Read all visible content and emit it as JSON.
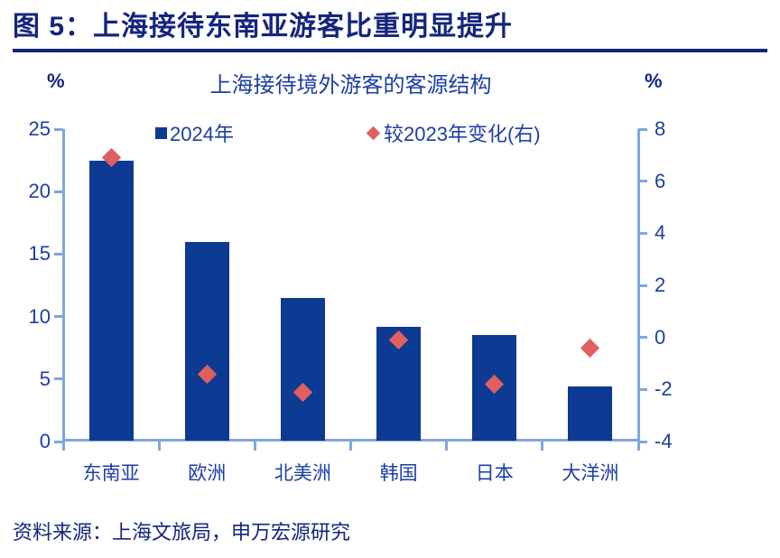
{
  "figure": {
    "title": "图 5：上海接待东南亚游客比重明显提升",
    "source": "资料来源：上海文旅局，申万宏源研究"
  },
  "colors": {
    "navy": "#14257E",
    "blue_text": "#1D3EA5",
    "bar_blue": "#0D3A93",
    "diamond_red": "#E06060",
    "axis_blue": "#7FA7DB"
  },
  "chart_data": {
    "type": "bar",
    "title": "上海接待境外游客的客源结构",
    "categories": [
      "东南亚",
      "欧洲",
      "北美洲",
      "韩国",
      "日本",
      "大洋洲"
    ],
    "series": [
      {
        "name": "2024年",
        "type": "bar",
        "axis": "left",
        "values": [
          22.5,
          16.0,
          11.5,
          9.2,
          8.5,
          4.4
        ]
      },
      {
        "name": "较2023年变化(右)",
        "type": "scatter-diamond",
        "axis": "right",
        "values": [
          6.9,
          -1.4,
          -2.1,
          -0.1,
          -1.8,
          -0.4
        ]
      }
    ],
    "left_axis": {
      "label": "%",
      "min": 0,
      "max": 25,
      "ticks": [
        0,
        5,
        10,
        15,
        20,
        25
      ]
    },
    "right_axis": {
      "label": "%",
      "min": -4,
      "max": 8,
      "ticks": [
        -4,
        -2,
        0,
        2,
        4,
        6,
        8
      ]
    },
    "legend_position": "top",
    "grid": false
  }
}
